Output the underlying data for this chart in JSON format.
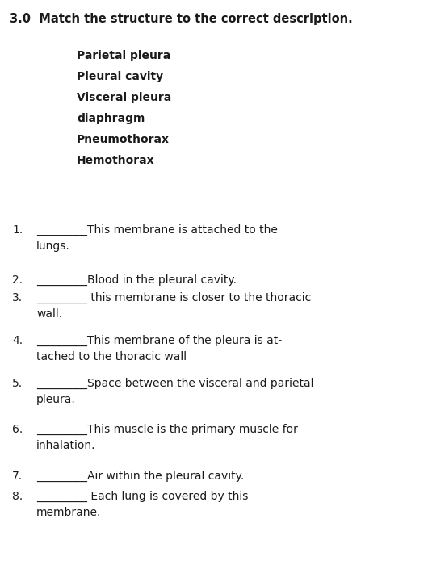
{
  "title": "3.0  Match the structure to the correct description.",
  "word_bank": [
    "Parietal pleura",
    "Pleural cavity",
    "Visceral pleura",
    "diaphragm",
    "Pneumothorax",
    "Hemothorax"
  ],
  "questions": [
    {
      "num": "1.",
      "blank": "_________",
      "text1": "This membrane is attached to the",
      "text2": "lungs."
    },
    {
      "num": "2.",
      "blank": "_________",
      "text1": "Blood in the pleural cavity.",
      "text2": ""
    },
    {
      "num": "3.",
      "blank": "_________ ",
      "text1": "this membrane is closer to the thoracic",
      "text2": "wall."
    },
    {
      "num": "4.",
      "blank": "_________",
      "text1": "This membrane of the pleura is at-",
      "text2": "tached to the thoracic wall"
    },
    {
      "num": "5.",
      "blank": "_________",
      "text1": "Space between the visceral and parietal",
      "text2": "pleura."
    },
    {
      "num": "6.",
      "blank": "_________",
      "text1": "This muscle is the primary muscle for",
      "text2": "inhalation."
    },
    {
      "num": "7.",
      "blank": "_________",
      "text1": "Air within the pleural cavity.",
      "text2": ""
    },
    {
      "num": "8.",
      "blank": "_________ ",
      "text1": "Each lung is covered by this",
      "text2": "membrane."
    }
  ],
  "bg_color": "#ffffff",
  "text_color": "#1a1a1a",
  "title_fontsize": 10.5,
  "body_fontsize": 10,
  "word_bank_fontsize": 10
}
